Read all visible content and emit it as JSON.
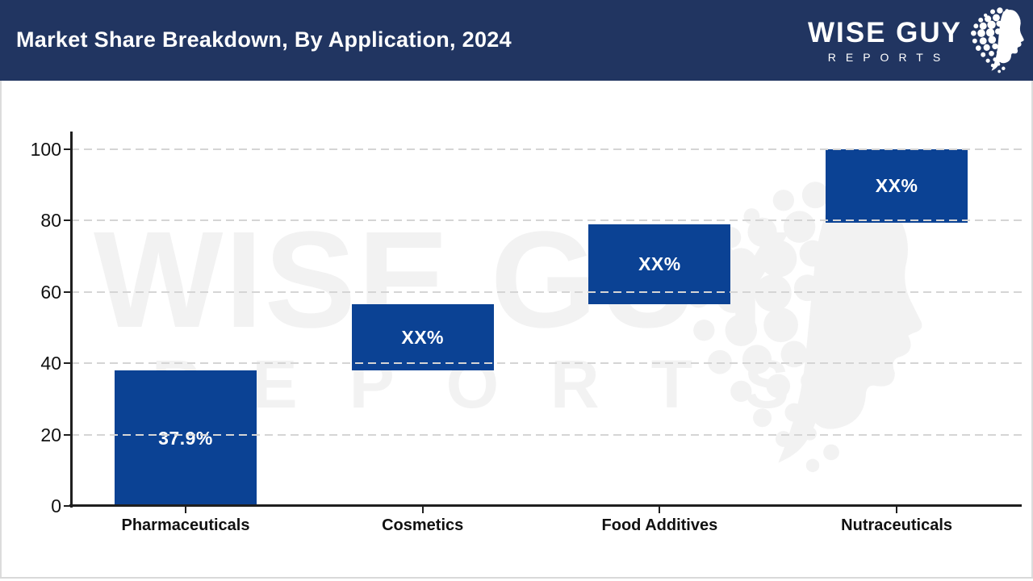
{
  "header": {
    "title": "Market Share Breakdown, By Application, 2024",
    "logo": {
      "line1": "WISE GUY",
      "line2": "REPORTS"
    }
  },
  "watermark": {
    "line1": "WISE GUY",
    "line2": "REPORTS"
  },
  "colors": {
    "header_bg": "#213561",
    "bar": "#0b4294",
    "axis": "#1f1f1f",
    "gridline": "#d5d5d5",
    "watermark": "#f2f2f2",
    "bar_label": "#ffffff"
  },
  "chart_data": {
    "type": "bar",
    "subtype": "waterfall",
    "title": "Market Share Breakdown, By Application, 2024",
    "categories": [
      "Pharmaceuticals",
      "Cosmetics",
      "Food Additives",
      "Nutraceuticals"
    ],
    "segments": [
      {
        "category": "Pharmaceuticals",
        "start": 0,
        "end": 37.9,
        "label": "37.9%"
      },
      {
        "category": "Cosmetics",
        "start": 37.9,
        "end": 56.6,
        "label": "XX%"
      },
      {
        "category": "Food Additives",
        "start": 56.6,
        "end": 79.0,
        "label": "XX%"
      },
      {
        "category": "Nutraceuticals",
        "start": 79.5,
        "end": 100,
        "label": "XX%"
      }
    ],
    "yticks": [
      0,
      20,
      40,
      60,
      80,
      100
    ],
    "ylim": [
      0,
      100
    ],
    "xlabel": "",
    "ylabel": "",
    "grid": "horizontal-dashed",
    "legend": "none"
  }
}
